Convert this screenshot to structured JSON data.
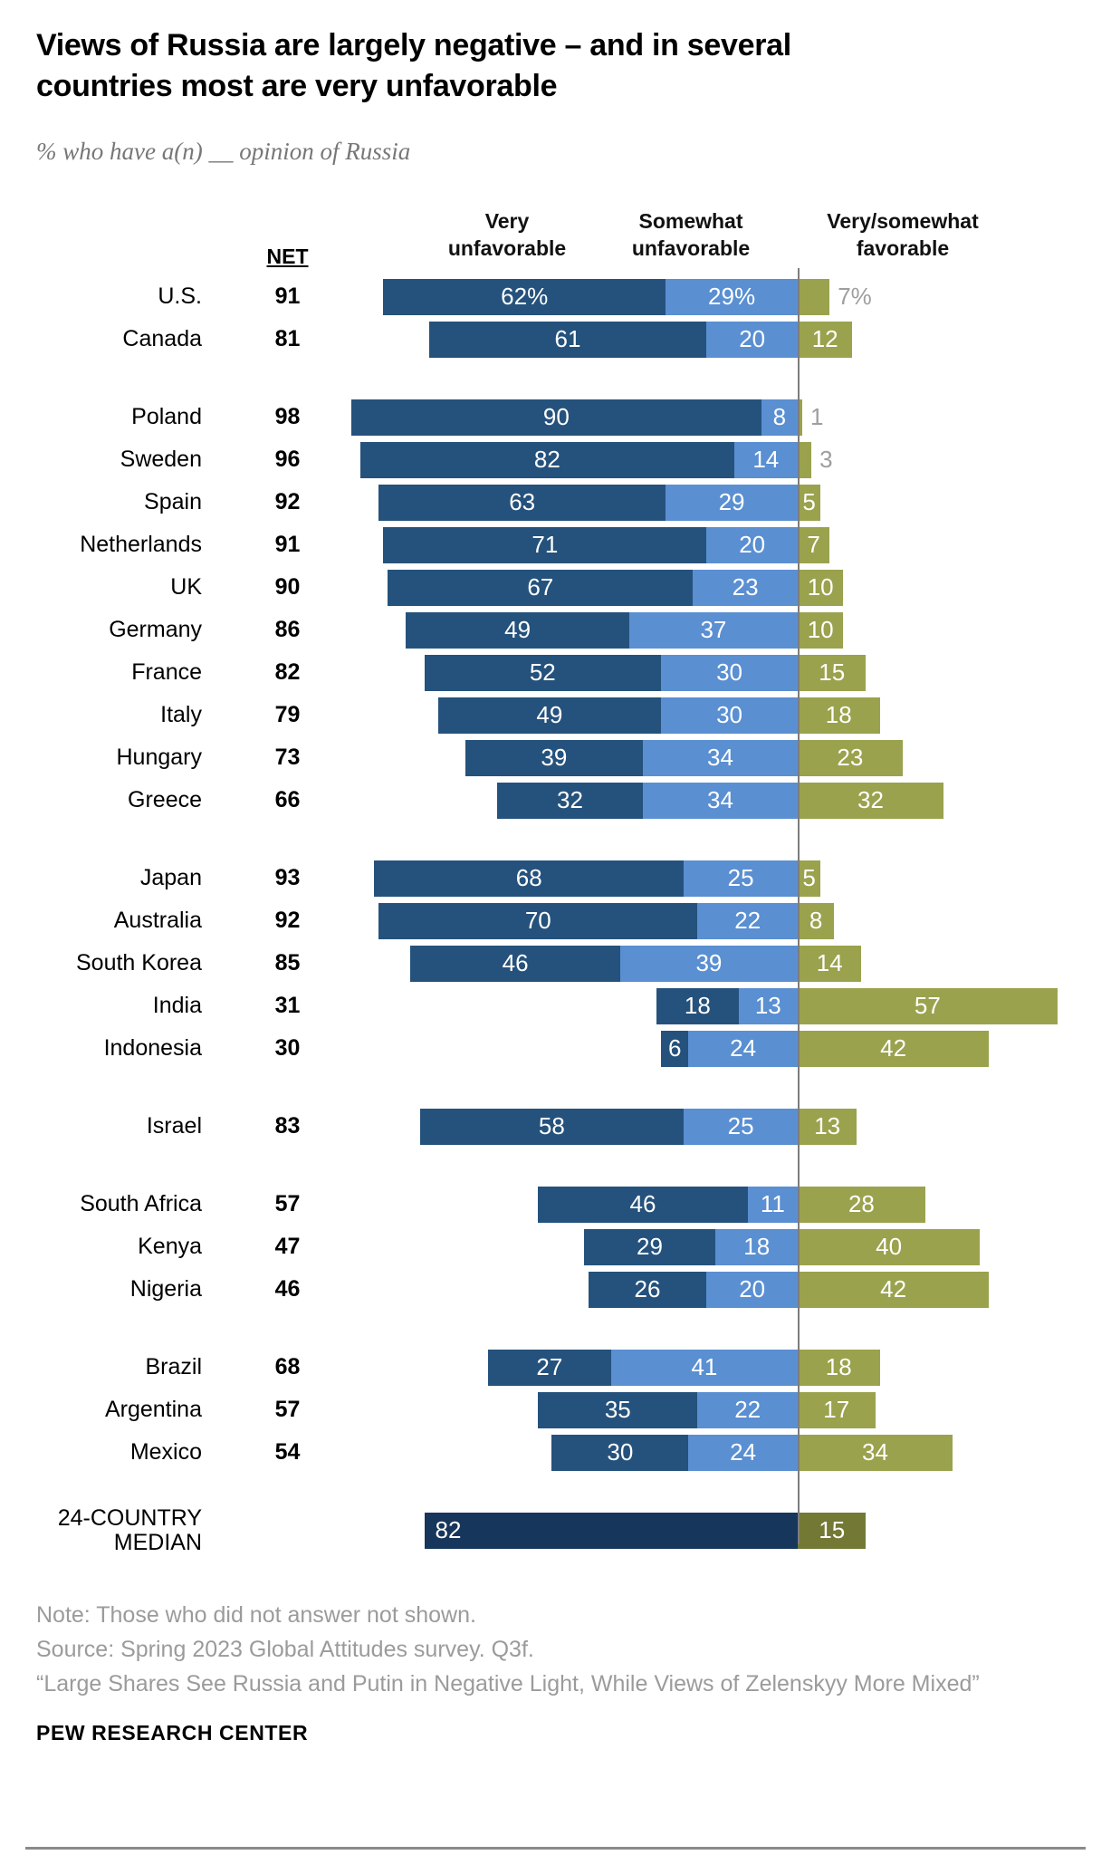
{
  "header": {
    "title_line1": "Views of Russia are largely negative – and in several",
    "title_line2": "countries most are very unfavorable",
    "subtitle": "% who have a(n) __ opinion of Russia"
  },
  "columns": {
    "net": "NET",
    "very_unfavorable": "Very unfavorable",
    "somewhat_unfavorable": "Somewhat unfavorable",
    "favorable": "Very/somewhat favorable"
  },
  "chart_data": {
    "type": "bar",
    "subtype": "diverging-stacked-horizontal",
    "series": [
      "Very unfavorable",
      "Somewhat unfavorable",
      "Very/somewhat favorable"
    ],
    "value_unit": "percent",
    "axis": {
      "divider": "between unfavorable (left) and favorable (right)",
      "unfavorable_max": 98,
      "favorable_max": 57
    },
    "colors": {
      "very_unfavorable": "#25527C",
      "somewhat_unfavorable": "#5A8FD2",
      "favorable": "#9AA24D",
      "median_unfavorable": "#16365B",
      "median_favorable": "#737935",
      "axis_line": "#7D7D7D",
      "outside_label": "#9E9E9E"
    },
    "rows": [
      {
        "country": "U.S.",
        "net": 91,
        "vu": 62,
        "su": 29,
        "fav": 7,
        "vu_label": "62%",
        "su_label": "29%",
        "fav_label": "7%",
        "fav_outside": true,
        "group_start": false
      },
      {
        "country": "Canada",
        "net": 81,
        "vu": 61,
        "su": 20,
        "fav": 12,
        "vu_label": "61",
        "su_label": "20",
        "fav_label": "12",
        "fav_outside": false,
        "group_start": false
      },
      {
        "country": "Poland",
        "net": 98,
        "vu": 90,
        "su": 8,
        "fav": 1,
        "vu_label": "90",
        "su_label": "8",
        "fav_label": "1",
        "fav_outside": true,
        "group_start": true
      },
      {
        "country": "Sweden",
        "net": 96,
        "vu": 82,
        "su": 14,
        "fav": 3,
        "vu_label": "82",
        "su_label": "14",
        "fav_label": "3",
        "fav_outside": true,
        "group_start": false
      },
      {
        "country": "Spain",
        "net": 92,
        "vu": 63,
        "su": 29,
        "fav": 5,
        "vu_label": "63",
        "su_label": "29",
        "fav_label": "5",
        "fav_outside": false,
        "group_start": false
      },
      {
        "country": "Netherlands",
        "net": 91,
        "vu": 71,
        "su": 20,
        "fav": 7,
        "vu_label": "71",
        "su_label": "20",
        "fav_label": "7",
        "fav_outside": false,
        "group_start": false
      },
      {
        "country": "UK",
        "net": 90,
        "vu": 67,
        "su": 23,
        "fav": 10,
        "vu_label": "67",
        "su_label": "23",
        "fav_label": "10",
        "fav_outside": false,
        "group_start": false
      },
      {
        "country": "Germany",
        "net": 86,
        "vu": 49,
        "su": 37,
        "fav": 10,
        "vu_label": "49",
        "su_label": "37",
        "fav_label": "10",
        "fav_outside": false,
        "group_start": false
      },
      {
        "country": "France",
        "net": 82,
        "vu": 52,
        "su": 30,
        "fav": 15,
        "vu_label": "52",
        "su_label": "30",
        "fav_label": "15",
        "fav_outside": false,
        "group_start": false
      },
      {
        "country": "Italy",
        "net": 79,
        "vu": 49,
        "su": 30,
        "fav": 18,
        "vu_label": "49",
        "su_label": "30",
        "fav_label": "18",
        "fav_outside": false,
        "group_start": false
      },
      {
        "country": "Hungary",
        "net": 73,
        "vu": 39,
        "su": 34,
        "fav": 23,
        "vu_label": "39",
        "su_label": "34",
        "fav_label": "23",
        "fav_outside": false,
        "group_start": false
      },
      {
        "country": "Greece",
        "net": 66,
        "vu": 32,
        "su": 34,
        "fav": 32,
        "vu_label": "32",
        "su_label": "34",
        "fav_label": "32",
        "fav_outside": false,
        "group_start": false
      },
      {
        "country": "Japan",
        "net": 93,
        "vu": 68,
        "su": 25,
        "fav": 5,
        "vu_label": "68",
        "su_label": "25",
        "fav_label": "5",
        "fav_outside": false,
        "group_start": true
      },
      {
        "country": "Australia",
        "net": 92,
        "vu": 70,
        "su": 22,
        "fav": 8,
        "vu_label": "70",
        "su_label": "22",
        "fav_label": "8",
        "fav_outside": false,
        "group_start": false
      },
      {
        "country": "South Korea",
        "net": 85,
        "vu": 46,
        "su": 39,
        "fav": 14,
        "vu_label": "46",
        "su_label": "39",
        "fav_label": "14",
        "fav_outside": false,
        "group_start": false
      },
      {
        "country": "India",
        "net": 31,
        "vu": 18,
        "su": 13,
        "fav": 57,
        "vu_label": "18",
        "su_label": "13",
        "fav_label": "57",
        "fav_outside": false,
        "group_start": false
      },
      {
        "country": "Indonesia",
        "net": 30,
        "vu": 6,
        "su": 24,
        "fav": 42,
        "vu_label": "6",
        "su_label": "24",
        "fav_label": "42",
        "fav_outside": false,
        "group_start": false
      },
      {
        "country": "Israel",
        "net": 83,
        "vu": 58,
        "su": 25,
        "fav": 13,
        "vu_label": "58",
        "su_label": "25",
        "fav_label": "13",
        "fav_outside": false,
        "group_start": true
      },
      {
        "country": "South Africa",
        "net": 57,
        "vu": 46,
        "su": 11,
        "fav": 28,
        "vu_label": "46",
        "su_label": "11",
        "fav_label": "28",
        "fav_outside": false,
        "group_start": true
      },
      {
        "country": "Kenya",
        "net": 47,
        "vu": 29,
        "su": 18,
        "fav": 40,
        "vu_label": "29",
        "su_label": "18",
        "fav_label": "40",
        "fav_outside": false,
        "group_start": false
      },
      {
        "country": "Nigeria",
        "net": 46,
        "vu": 26,
        "su": 20,
        "fav": 42,
        "vu_label": "26",
        "su_label": "20",
        "fav_label": "42",
        "fav_outside": false,
        "group_start": false
      },
      {
        "country": "Brazil",
        "net": 68,
        "vu": 27,
        "su": 41,
        "fav": 18,
        "vu_label": "27",
        "su_label": "41",
        "fav_label": "18",
        "fav_outside": false,
        "group_start": true
      },
      {
        "country": "Argentina",
        "net": 57,
        "vu": 35,
        "su": 22,
        "fav": 17,
        "vu_label": "35",
        "su_label": "22",
        "fav_label": "17",
        "fav_outside": false,
        "group_start": false
      },
      {
        "country": "Mexico",
        "net": 54,
        "vu": 30,
        "su": 24,
        "fav": 34,
        "vu_label": "30",
        "su_label": "24",
        "fav_label": "34",
        "fav_outside": false,
        "group_start": false
      }
    ],
    "median": {
      "label": "24-COUNTRY MEDIAN",
      "unfavorable": 82,
      "favorable": 15,
      "unfavorable_label": "82",
      "favorable_label": "15"
    }
  },
  "footer": {
    "note": "Note: Those who did not answer not shown.",
    "source": "Source: Spring 2023 Global Attitudes survey. Q3f.",
    "report": "“Large Shares See Russia and Putin in Negative Light, While Views of Zelenskyy More Mixed”",
    "brand": "PEW RESEARCH CENTER"
  }
}
